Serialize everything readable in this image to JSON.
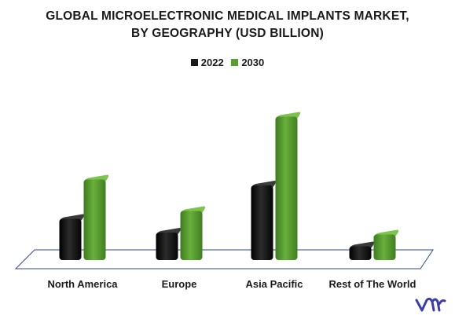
{
  "title_line1": "GLOBAL MICROELECTRONIC MEDICAL IMPLANTS MARKET,",
  "title_line2": "BY GEOGRAPHY (USD BILLION)",
  "chart_data": {
    "type": "bar",
    "categories": [
      "North America",
      "Europe",
      "Asia Pacific",
      "Rest of The World"
    ],
    "series": [
      {
        "name": "2022",
        "color": "#1a1a1a",
        "values": [
          2.1,
          1.4,
          3.8,
          0.7
        ]
      },
      {
        "name": "2030",
        "color": "#5a9e32",
        "values": [
          4.1,
          2.5,
          7.3,
          1.3
        ]
      }
    ],
    "ylim": [
      0,
      8
    ],
    "grid": false,
    "legend": "top",
    "style": "3d"
  },
  "logo": {
    "icon": "vmr-logo-icon",
    "color": "#3b3ea8"
  }
}
